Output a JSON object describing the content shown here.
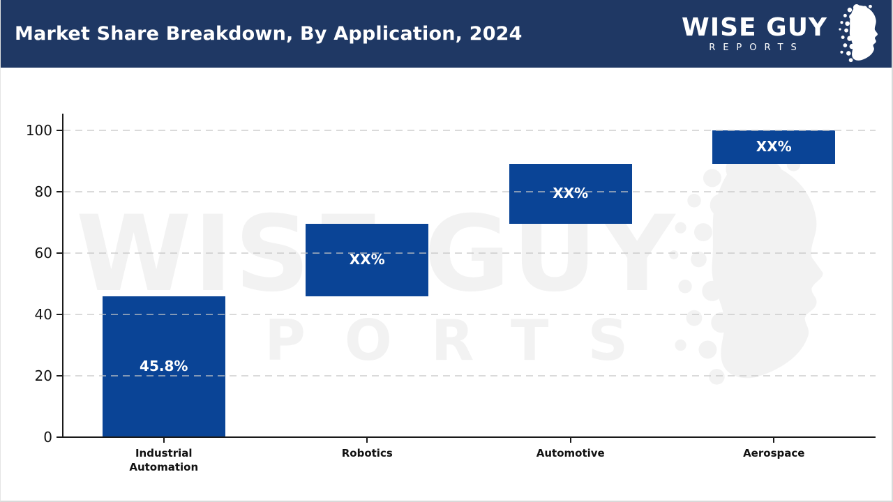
{
  "header": {
    "title": "Market Share Breakdown, By Application, 2024",
    "logo": {
      "line1": "WISE GUY",
      "line2": "REPORTS"
    }
  },
  "watermark": {
    "line1": "WISE GUY",
    "line2": "REPORTS"
  },
  "chart_data": {
    "type": "bar",
    "subtype": "waterfall",
    "title": "Market Share Breakdown, By Application, 2024",
    "categories": [
      "Industrial Automation",
      "Robotics",
      "Automotive",
      "Aerospace"
    ],
    "bars": [
      {
        "category": "Industrial Automation",
        "start": 0,
        "end": 45.8,
        "value_label": "45.8%"
      },
      {
        "category": "Robotics",
        "start": 45.8,
        "end": 69.6,
        "value_label": "XX%"
      },
      {
        "category": "Automotive",
        "start": 69.6,
        "end": 89.0,
        "value_label": "XX%"
      },
      {
        "category": "Aerospace",
        "start": 89.0,
        "end": 100.0,
        "value_label": "XX%"
      }
    ],
    "y_ticks": [
      0,
      20,
      40,
      60,
      80,
      100
    ],
    "ylim": [
      0,
      105
    ],
    "xlabel": "",
    "ylabel": "",
    "grid": "horizontal-dashed",
    "legend": "none",
    "bar_color": "#0a4496",
    "value_label_color": "#ffffff"
  },
  "colors": {
    "header_bg": "#1f3864",
    "bar": "#0a4496",
    "axis": "#1a1a1a",
    "watermark": "#f2f2f2",
    "page_bg": "#ffffff"
  }
}
